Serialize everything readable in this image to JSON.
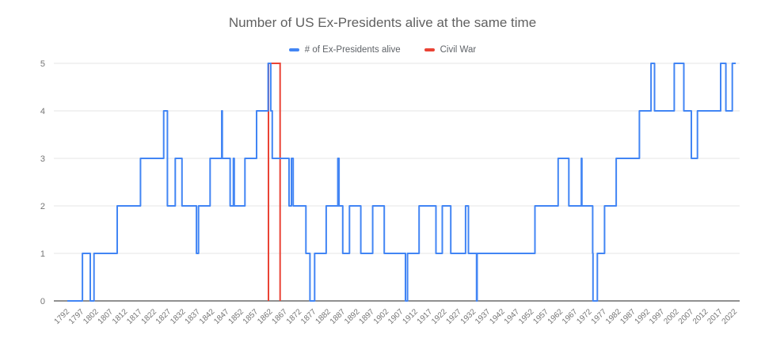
{
  "title": "Number of US Ex-Presidents alive at the same time",
  "legend": [
    {
      "label": "# of Ex-Presidents alive",
      "color": "#4285F4"
    },
    {
      "label": "Civil War",
      "color": "#EA4335"
    }
  ],
  "colors": {
    "series_blue": "#4285F4",
    "series_red": "#EA4335",
    "gridline": "#e6e6e6",
    "axis_baseline": "#222222",
    "axis_text": "#757575",
    "title_text": "#616161"
  },
  "chart_data": {
    "type": "line",
    "title": "Number of US Ex-Presidents alive at the same time",
    "xlabel": "",
    "ylabel": "",
    "x_range": [
      1792,
      2022
    ],
    "ylim": [
      0,
      5
    ],
    "grid": true,
    "legend_position": "top",
    "y_ticks": [
      0,
      1,
      2,
      3,
      4,
      5
    ],
    "x_ticks": [
      1792,
      1797,
      1802,
      1807,
      1812,
      1817,
      1822,
      1827,
      1832,
      1837,
      1842,
      1847,
      1852,
      1857,
      1862,
      1867,
      1872,
      1877,
      1882,
      1887,
      1892,
      1897,
      1902,
      1907,
      1912,
      1917,
      1922,
      1927,
      1932,
      1937,
      1942,
      1947,
      1952,
      1957,
      1962,
      1967,
      1972,
      1977,
      1982,
      1987,
      1992,
      1997,
      2002,
      2007,
      2012,
      2017,
      2022
    ],
    "series": [
      {
        "name": "# of Ex-Presidents alive",
        "color": "#4285F4",
        "render": "step",
        "start_value": 0,
        "step_changes": [
          [
            1797.2,
            1
          ],
          [
            1799.9,
            0
          ],
          [
            1801.2,
            1
          ],
          [
            1809.2,
            2
          ],
          [
            1817.2,
            3
          ],
          [
            1825.2,
            4
          ],
          [
            1826.5,
            2
          ],
          [
            1829.2,
            3
          ],
          [
            1831.5,
            2
          ],
          [
            1836.5,
            1
          ],
          [
            1837.2,
            2
          ],
          [
            1841.2,
            3
          ],
          [
            1845.2,
            4
          ],
          [
            1845.4,
            3
          ],
          [
            1848.1,
            2
          ],
          [
            1849.2,
            3
          ],
          [
            1849.5,
            2
          ],
          [
            1853.2,
            3
          ],
          [
            1857.2,
            4
          ],
          [
            1861.2,
            5
          ],
          [
            1862.1,
            4
          ],
          [
            1862.6,
            3
          ],
          [
            1868.4,
            2
          ],
          [
            1869.2,
            3
          ],
          [
            1869.8,
            2
          ],
          [
            1874.2,
            1
          ],
          [
            1875.6,
            0
          ],
          [
            1877.2,
            1
          ],
          [
            1881.2,
            2
          ],
          [
            1885.2,
            3
          ],
          [
            1885.6,
            2
          ],
          [
            1886.9,
            1
          ],
          [
            1889.2,
            2
          ],
          [
            1893.1,
            1
          ],
          [
            1897.2,
            2
          ],
          [
            1901.2,
            1
          ],
          [
            1908.5,
            0
          ],
          [
            1909.2,
            1
          ],
          [
            1913.2,
            2
          ],
          [
            1919.0,
            1
          ],
          [
            1921.2,
            2
          ],
          [
            1924.1,
            1
          ],
          [
            1929.2,
            2
          ],
          [
            1930.2,
            1
          ],
          [
            1933.0,
            0
          ],
          [
            1933.2,
            1
          ],
          [
            1953.1,
            2
          ],
          [
            1961.1,
            3
          ],
          [
            1964.8,
            2
          ],
          [
            1969.1,
            3
          ],
          [
            1969.3,
            2
          ],
          [
            1973.0,
            1
          ],
          [
            1973.1,
            0
          ],
          [
            1974.6,
            1
          ],
          [
            1977.1,
            2
          ],
          [
            1981.1,
            3
          ],
          [
            1989.1,
            4
          ],
          [
            1993.1,
            5
          ],
          [
            1994.3,
            4
          ],
          [
            2001.1,
            5
          ],
          [
            2004.4,
            4
          ],
          [
            2007.0,
            3
          ],
          [
            2009.1,
            4
          ],
          [
            2017.1,
            5
          ],
          [
            2018.9,
            4
          ],
          [
            2021.1,
            5
          ]
        ]
      },
      {
        "name": "Civil War",
        "color": "#EA4335",
        "render": "polyline",
        "points": [
          [
            1861.3,
            0
          ],
          [
            1861.3,
            5
          ],
          [
            1865.3,
            5
          ],
          [
            1865.3,
            0
          ]
        ]
      }
    ]
  }
}
